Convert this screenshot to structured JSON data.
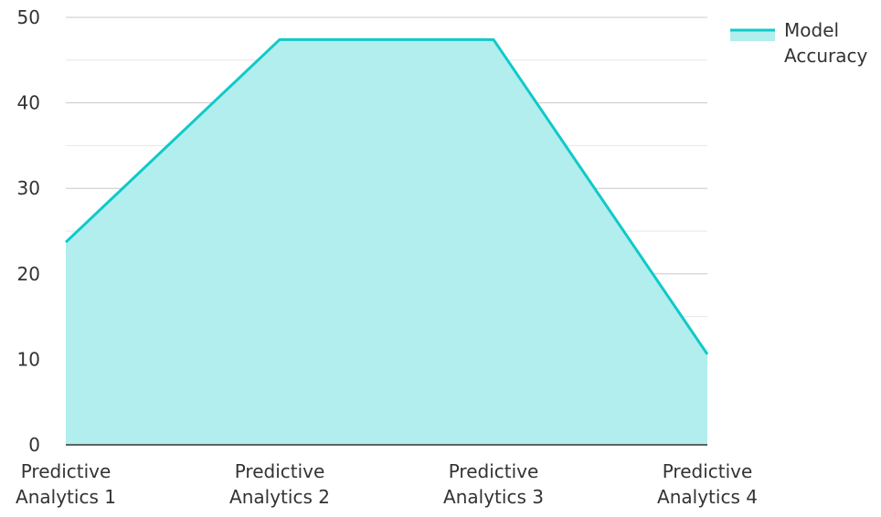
{
  "chart_data": {
    "type": "area",
    "title": "",
    "xlabel": "",
    "ylabel": "",
    "categories": [
      [
        "Predictive",
        "Analytics 1"
      ],
      [
        "Predictive",
        "Analytics 2"
      ],
      [
        "Predictive",
        "Analytics 3"
      ],
      [
        "Predictive",
        "Analytics 4"
      ]
    ],
    "series": [
      {
        "name": [
          "Model",
          "Accuracy"
        ],
        "values": [
          23.7,
          47.4,
          47.4,
          10.6
        ],
        "line_color": "#10c9c9",
        "fill_color": "#b1eeed"
      }
    ],
    "ylim": [
      0,
      50
    ],
    "yticks": [
      "0",
      "10",
      "20",
      "30",
      "40",
      "50"
    ],
    "minor_gridlines": [
      5,
      15,
      25,
      35,
      45
    ],
    "grid": true,
    "legend_position": "right"
  }
}
